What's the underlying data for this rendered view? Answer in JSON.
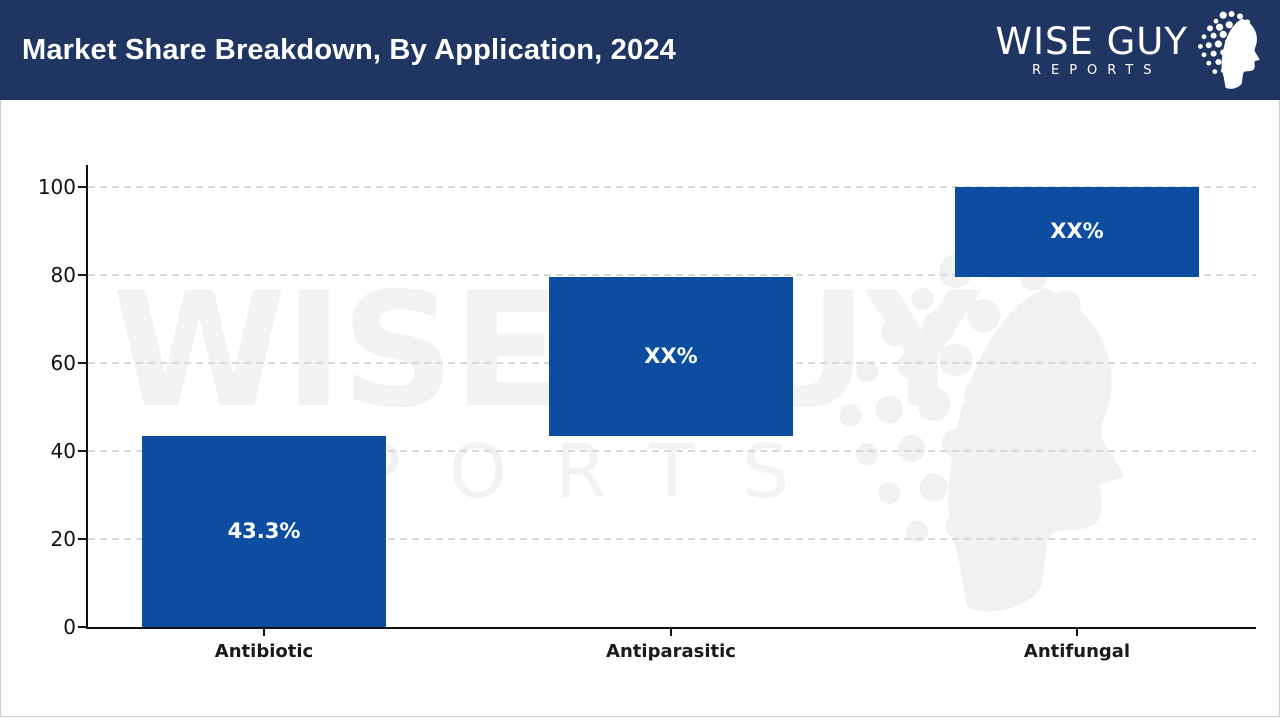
{
  "header": {
    "title": "Market Share Breakdown, By Application, 2024",
    "logo": {
      "line1": "WISE GUY",
      "line2": "REPORTS"
    }
  },
  "watermark": {
    "line1": "WISE GUY",
    "line2": "REPORTS"
  },
  "chart_data": {
    "type": "bar",
    "variant": "waterfall",
    "title": "Market Share Breakdown, By Application, 2024",
    "categories": [
      "Antibiotic",
      "Antiparasitic",
      "Antifungal"
    ],
    "series": [
      {
        "name": "Market Share",
        "bars": [
          {
            "category": "Antibiotic",
            "start": 0,
            "end": 43.3,
            "label": "43.3%"
          },
          {
            "category": "Antiparasitic",
            "start": 43.3,
            "end": 79.5,
            "label": "XX%"
          },
          {
            "category": "Antifungal",
            "start": 79.5,
            "end": 100,
            "label": "XX%"
          }
        ]
      }
    ],
    "ylim": [
      0,
      100
    ],
    "yticks": [
      0,
      20,
      40,
      60,
      80,
      100
    ],
    "xlabel": "",
    "ylabel": "",
    "legend": "none",
    "grid": {
      "horizontal": true,
      "style": "dashed",
      "color": "#d9d9d9"
    },
    "bar_color": "#0c4da1",
    "bar_label_color": "#ffffff",
    "axis_color": "#111111",
    "header_color": "#203662"
  }
}
